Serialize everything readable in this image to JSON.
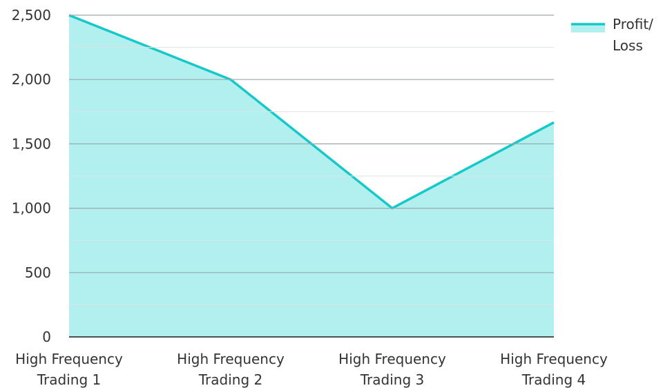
{
  "chart_data": {
    "type": "area",
    "categories": [
      [
        "High Frequency",
        "Trading 1"
      ],
      [
        "High Frequency",
        "Trading 2"
      ],
      [
        "High Frequency",
        "Trading 3"
      ],
      [
        "High Frequency",
        "Trading 4"
      ]
    ],
    "series": [
      {
        "name": [
          "Profit/",
          "Loss"
        ],
        "values": [
          2500,
          2000,
          1000,
          1667
        ],
        "line_color": "#17c8c8",
        "fill_color": "#b2efef"
      }
    ],
    "ylim": [
      0,
      2500
    ],
    "yticks": [
      0,
      500,
      1000,
      1500,
      2000,
      2500
    ],
    "ytick_labels": [
      "0",
      "500",
      "1,000",
      "1,500",
      "2,000",
      "2,500"
    ],
    "minor_gridlines": true,
    "grid": true,
    "legend_position": "top-right",
    "title": "",
    "xlabel": "",
    "ylabel": "",
    "colors": {
      "grid_major": "#9aa8ab",
      "grid_minor": "#dde3e4",
      "axis": "#1a1a1a",
      "text": "#333333"
    }
  }
}
